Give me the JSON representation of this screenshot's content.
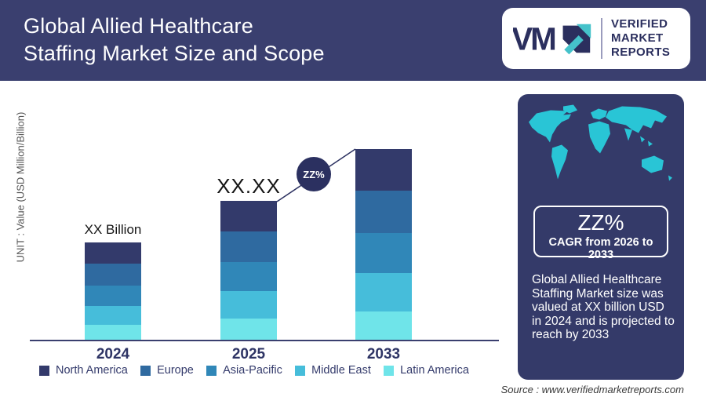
{
  "header": {
    "title_line1": "Global Allied Healthcare",
    "title_line2": "Staffing Market Size and Scope",
    "logo": {
      "mark_letters": "VM",
      "name_line1": "VERIFIED",
      "name_line2": "MARKET",
      "name_line3": "REPORTS"
    }
  },
  "chart_data": {
    "type": "bar",
    "stacked": true,
    "title": "",
    "ylabel": "UNIT : Value (USD Million/Billion)",
    "xlabel": "",
    "grid": false,
    "legend_position": "bottom",
    "categories": [
      "2024",
      "2025",
      "2033"
    ],
    "bar_value_labels": [
      "XX Billion",
      "XX.XX",
      ""
    ],
    "growth_label": "ZZ%",
    "values_relative_to_tallest": [
      0.51,
      0.73,
      1.0
    ],
    "series": [
      {
        "name": "North America",
        "color": "#333a6b",
        "stack_fraction": 0.22
      },
      {
        "name": "Europe",
        "color": "#2f6aa0",
        "stack_fraction": 0.22
      },
      {
        "name": "Asia-Pacific",
        "color": "#3087b8",
        "stack_fraction": 0.21
      },
      {
        "name": "Middle East",
        "color": "#46bdda",
        "stack_fraction": 0.2
      },
      {
        "name": "Latin America",
        "color": "#6fe4e9",
        "stack_fraction": 0.15
      }
    ]
  },
  "sidebar": {
    "cagr_value": "ZZ%",
    "cagr_caption": "CAGR from 2026 to 2033",
    "description": "Global Allied Healthcare Staffing Market size was valued at XX billion USD in 2024 and is projected to reach  by 2033"
  },
  "footer": {
    "source": "Source : www.verifiedmarketreports.com"
  },
  "colors": {
    "header_bg": "#3a3f6f",
    "panel_bg": "#343a69",
    "map_teal": "#29c5d6",
    "navy_text": "#2e3465",
    "annotation_circle": "#2b3060"
  }
}
